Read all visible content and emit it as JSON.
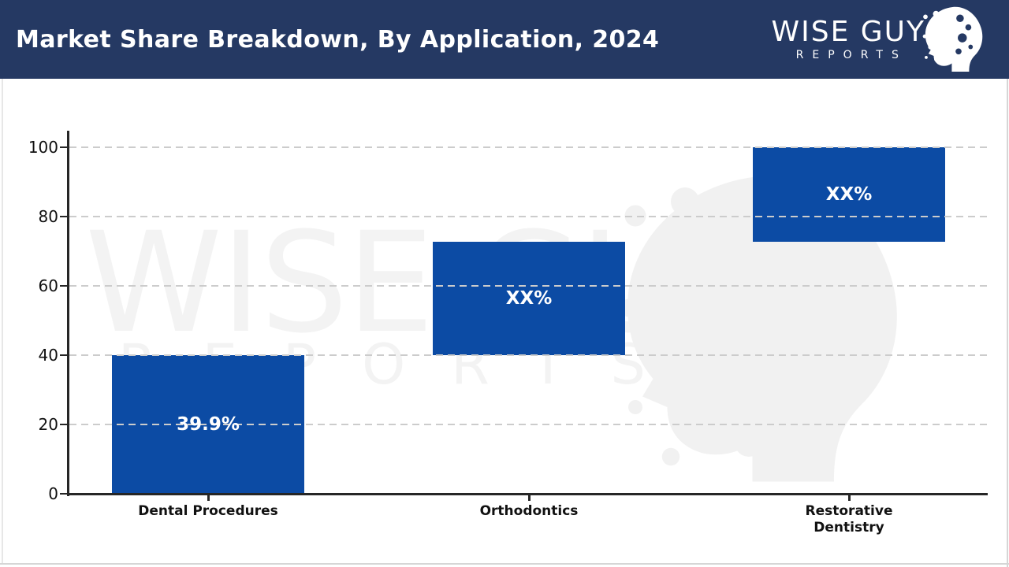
{
  "header": {
    "title": "Market Share Breakdown, By Application, 2024",
    "bg_color": "#253963",
    "logo": {
      "line1": "WISE GUY",
      "line2": "REPORTS"
    }
  },
  "watermark": {
    "line1": "WISE GUY",
    "line2": "REPORTS"
  },
  "chart_data": {
    "type": "bar",
    "variant": "waterfall",
    "title": "Market Share Breakdown, By Application, 2024",
    "categories": [
      "Dental Procedures",
      "Orthodontics",
      "Restorative Dentistry"
    ],
    "category_display": [
      "Dental Procedures",
      "Orthodontics",
      "Restorative\nDentistry"
    ],
    "segments": [
      {
        "category": "Dental Procedures",
        "start": 0,
        "end": 39.9,
        "label": "39.9%"
      },
      {
        "category": "Orthodontics",
        "start": 39.9,
        "end": 72.8,
        "label": "XX%"
      },
      {
        "category": "Restorative Dentistry",
        "start": 72.8,
        "end": 100,
        "label": "XX%"
      }
    ],
    "ylim": [
      0,
      100
    ],
    "yticks": [
      0,
      20,
      40,
      60,
      80,
      100
    ],
    "xlabel": "",
    "ylabel": "",
    "grid": {
      "horizontal": true,
      "style": "dashed",
      "color": "#cccccc",
      "drawn_over_bars": true
    },
    "legend": "none",
    "bar_color": "#0c4ba4",
    "bar_label_color": "#ffffff",
    "axis_color": "#262626",
    "tick_label_color": "#111111"
  }
}
